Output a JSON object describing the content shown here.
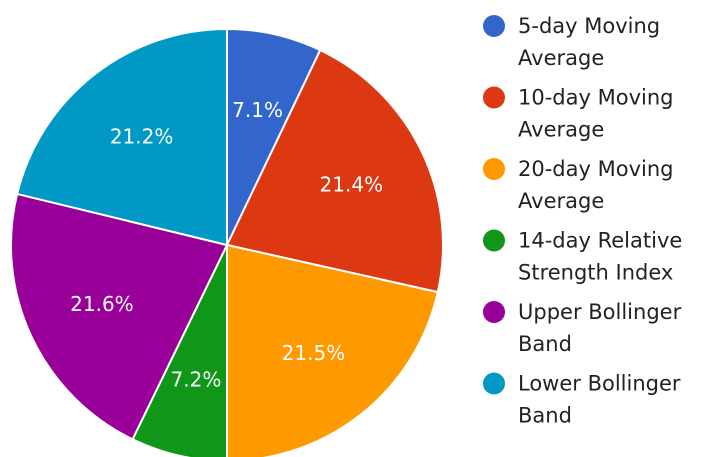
{
  "chart_data": {
    "type": "pie",
    "start_angle_deg": 0,
    "direction": "clockwise",
    "legend_position": "right",
    "slices": [
      {
        "label_lines": [
          "5-day Moving",
          "Average"
        ],
        "value": 7.1,
        "display": "7.1%",
        "color": "#3366cc"
      },
      {
        "label_lines": [
          "10-day Moving",
          "Average"
        ],
        "value": 21.4,
        "display": "21.4%",
        "color": "#dc3912"
      },
      {
        "label_lines": [
          "20-day Moving",
          "Average"
        ],
        "value": 21.5,
        "display": "21.5%",
        "color": "#ff9900"
      },
      {
        "label_lines": [
          "14-day Relative",
          "Strength Index"
        ],
        "value": 7.2,
        "display": "7.2%",
        "color": "#109618"
      },
      {
        "label_lines": [
          "Upper Bollinger",
          "Band"
        ],
        "value": 21.6,
        "display": "21.6%",
        "color": "#990099"
      },
      {
        "label_lines": [
          "Lower Bollinger",
          "Band"
        ],
        "value": 21.2,
        "display": "21.2%",
        "color": "#0099c6"
      }
    ]
  }
}
